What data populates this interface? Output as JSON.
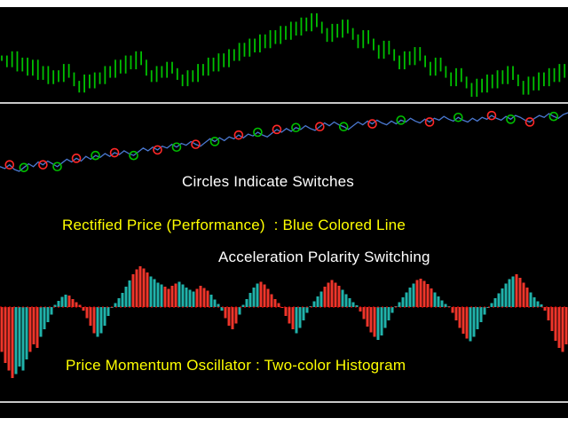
{
  "colors": {
    "background": "#000000",
    "frame": "#ffffff",
    "divider": "#c8c8c8",
    "price_bars": "#00c000",
    "line": "#4a78d0",
    "marker_red": "#ff2828",
    "marker_green": "#00c000",
    "hist_teal": "#20b2aa",
    "hist_red": "#ee352a",
    "zero_line": "#ff0000",
    "label_yellow": "#ffff00",
    "label_white": "#ffffff"
  },
  "chart_data": [
    {
      "type": "bar",
      "name": "price-bars",
      "style": "ohlc-vertical-bars",
      "color_key": "price_bars",
      "values": [
        55,
        52,
        57,
        50,
        54,
        48,
        53,
        46,
        50,
        44,
        48,
        45,
        51,
        47,
        43,
        40,
        46,
        42,
        47,
        44,
        50,
        47,
        53,
        49,
        55,
        51,
        57,
        53,
        48,
        45,
        50,
        47,
        52,
        49,
        46,
        43,
        48,
        45,
        51,
        48,
        54,
        50,
        56,
        52,
        58,
        55,
        61,
        57,
        63,
        59,
        65,
        61,
        67,
        63,
        69,
        65,
        71,
        67,
        73,
        69,
        75,
        71,
        68,
        64,
        70,
        66,
        72,
        68,
        65,
        61,
        67,
        63,
        60,
        56,
        62,
        58,
        55,
        51,
        57,
        53,
        59,
        55,
        52,
        48,
        54,
        50,
        47,
        43,
        49,
        45,
        42,
        38,
        44,
        40,
        46,
        42,
        48,
        44,
        50,
        46,
        43,
        39,
        45,
        41,
        47,
        43,
        49,
        45,
        51,
        47
      ]
    },
    {
      "type": "line",
      "name": "rectified-price-line",
      "title": "Rectified Price (Performance)  : Blue Colored Line",
      "caption": "Circles Indicate Switches",
      "color_key": "line",
      "values": [
        30,
        28,
        32,
        27,
        25,
        29,
        33,
        30,
        35,
        32,
        36,
        33,
        30,
        34,
        38,
        35,
        39,
        36,
        41,
        38,
        42,
        40,
        44,
        41,
        45,
        43,
        47,
        44,
        42,
        46,
        50,
        47,
        51,
        48,
        52,
        50,
        54,
        51,
        55,
        53,
        57,
        54,
        52,
        56,
        60,
        57,
        61,
        58,
        62,
        60,
        64,
        61,
        65,
        63,
        67,
        64,
        62,
        66,
        70,
        67,
        71,
        68,
        72,
        70,
        74,
        71,
        69,
        73,
        77,
        74,
        78,
        75,
        73,
        70,
        74,
        78,
        75,
        79,
        76,
        80,
        77,
        75,
        79,
        76,
        80,
        78,
        82,
        79,
        77,
        81,
        78,
        82,
        80,
        84,
        81,
        79,
        83,
        80,
        78,
        82,
        79,
        83,
        81,
        85,
        82,
        80,
        84,
        81,
        85,
        83,
        80,
        78,
        82,
        85,
        83,
        87,
        84,
        82,
        86,
        88
      ],
      "markers": {
        "red": [
          2,
          9,
          16,
          24,
          33,
          41,
          50,
          58,
          67,
          78,
          90,
          103,
          111
        ],
        "green": [
          5,
          12,
          20,
          28,
          37,
          45,
          54,
          62,
          72,
          84,
          96,
          107,
          116
        ]
      }
    },
    {
      "type": "bar",
      "name": "momentum-histogram",
      "title": "Price Momentum Oscillator : Two-color Histogram",
      "caption": "Acceleration Polarity Switching",
      "zero_line": 0,
      "ylim": [
        -100,
        100
      ],
      "values_segments": [
        [
          -60,
          -75,
          -85,
          -95,
          -90,
          -80,
          -85,
          -70,
          -60,
          -50,
          -55,
          -40,
          -30,
          -20,
          -10
        ],
        [
          5,
          15,
          25,
          30,
          28,
          20,
          12,
          5
        ],
        [
          -5,
          -15,
          -25,
          -35,
          -40,
          -35,
          -25,
          -12
        ],
        [
          0,
          10,
          22,
          35,
          50,
          65,
          80,
          92,
          100,
          95,
          85,
          75,
          68,
          60,
          55
        ],
        [
          50,
          45,
          52,
          58,
          62,
          55,
          48,
          42,
          38,
          45,
          52,
          47,
          40
        ],
        [
          30,
          18,
          8,
          -5,
          -15,
          -25,
          -30,
          -22
        ],
        [
          -10,
          5,
          20,
          35,
          48,
          58,
          62,
          55,
          45,
          32,
          20,
          10
        ],
        [
          0,
          -12,
          -22,
          -30,
          -35,
          -28,
          -18,
          -8
        ],
        [
          2,
          14,
          26,
          38,
          50,
          60,
          66,
          60,
          52,
          42,
          32,
          22,
          12,
          4
        ],
        [
          -6,
          -16,
          -26,
          -34,
          -40,
          -44,
          -38,
          -28,
          -18,
          -8
        ],
        [
          2,
          12,
          24,
          36,
          48,
          58,
          66,
          70,
          64,
          56,
          46,
          36,
          26,
          16,
          8,
          2
        ],
        [
          -8,
          -18,
          -28,
          -36,
          -42,
          -46,
          -40,
          -30,
          -20,
          -10
        ],
        [
          0,
          10,
          22,
          34,
          46,
          58,
          68,
          75,
          80,
          72,
          60,
          48,
          36,
          24,
          14,
          6
        ],
        [
          -5,
          -18,
          -32,
          -45,
          -55,
          -60,
          -50
        ]
      ],
      "color_segments": [
        "rrrrttttrrrtttt",
        "ttttrrrr",
        "rrrrtttt",
        "ttttttrrrrrtttt",
        "rrrrtttttrrrr",
        "ttttrrrr",
        "ttttttrrrrrr",
        "rrrrtttt",
        "ttttrrrrrttttt",
        "rrrrrttttt",
        "ttttttrrrrrttttt",
        "rrrrrttttt",
        "ttttttttrrrrtttt",
        "rrrrrrr"
      ]
    }
  ]
}
